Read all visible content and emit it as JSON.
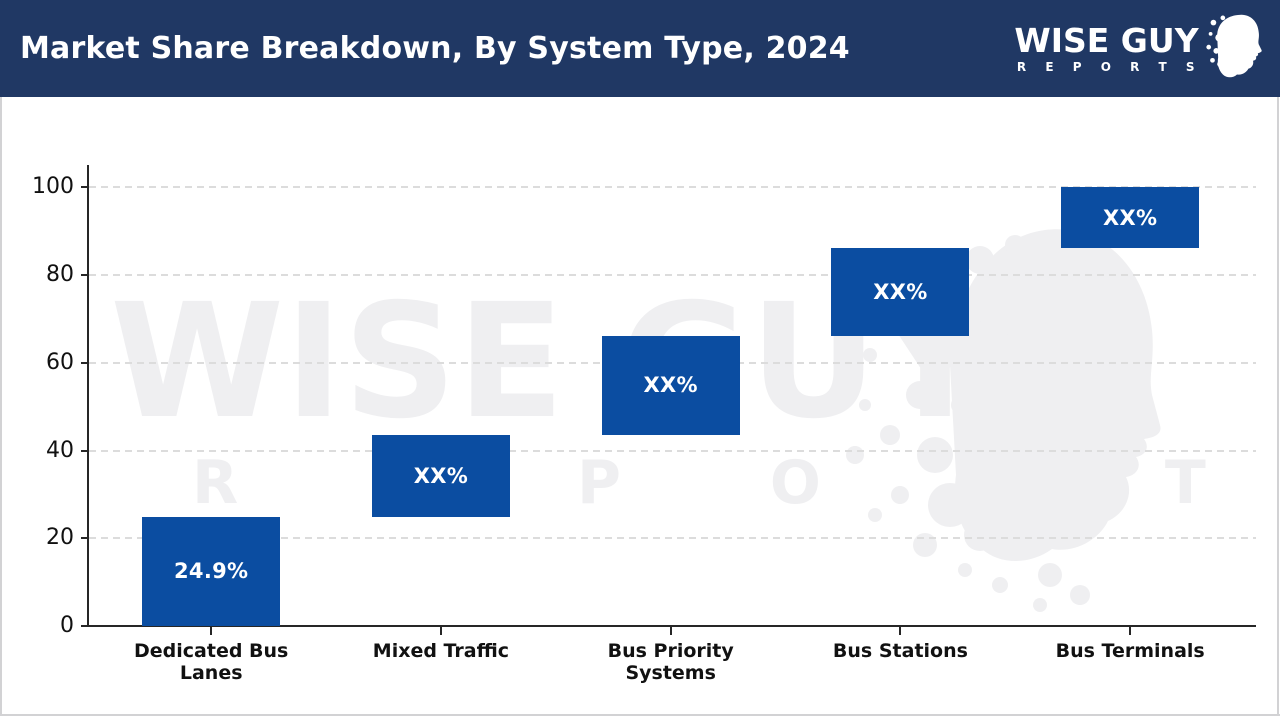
{
  "header": {
    "title": "Market Share Breakdown, By System Type, 2024",
    "logo": {
      "line1": "WISE GUY",
      "line2": "R E P O R T S"
    }
  },
  "watermark": {
    "line1": "WISE GUY",
    "line2": "R E P O R T S"
  },
  "chart_data": {
    "type": "bar",
    "subtype": "waterfall",
    "title": "Market Share Breakdown, By System Type, 2024",
    "categories": [
      "Dedicated Bus Lanes",
      "Mixed Traffic",
      "Bus Priority Systems",
      "Bus Stations",
      "Bus Terminals"
    ],
    "category_label_lines": [
      [
        "Dedicated Bus",
        "Lanes"
      ],
      [
        "Mixed Traffic"
      ],
      [
        "Bus Priority",
        "Systems"
      ],
      [
        "Bus Stations"
      ],
      [
        "Bus Terminals"
      ]
    ],
    "segments": [
      {
        "category": "Dedicated Bus Lanes",
        "start": 0,
        "end": 24.9,
        "label": "24.9%"
      },
      {
        "category": "Mixed Traffic",
        "start": 24.9,
        "end": 43.6,
        "label": "XX%"
      },
      {
        "category": "Bus Priority Systems",
        "start": 43.6,
        "end": 66.2,
        "label": "XX%"
      },
      {
        "category": "Bus Stations",
        "start": 66.2,
        "end": 86.1,
        "label": "XX%"
      },
      {
        "category": "Bus Terminals",
        "start": 86.1,
        "end": 100,
        "label": "XX%"
      }
    ],
    "xlabel": "",
    "ylabel": "",
    "yticks": [
      0,
      20,
      40,
      60,
      80,
      100
    ],
    "ylim": [
      0,
      105
    ],
    "grid": "dashed-horizontal",
    "legend": "none",
    "bar_color": "#0b4da1",
    "value_label_color": "#ffffff"
  },
  "colors": {
    "header_bg": "#203864",
    "bar": "#0b4da1",
    "watermark": "#efeff1",
    "grid": "#dcdcdc",
    "axis": "#262626",
    "frame_border": "#d2d2d4"
  }
}
